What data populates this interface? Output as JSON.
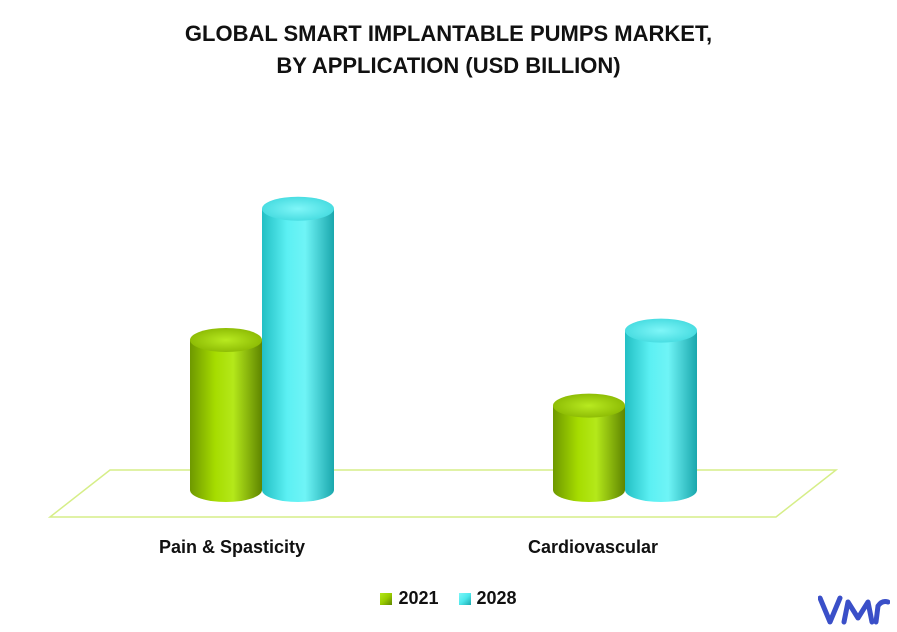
{
  "chart_data": {
    "type": "bar",
    "title_lines": [
      "GLOBAL SMART IMPLANTABLE PUMPS MARKET,",
      "BY APPLICATION (USD BILLION)"
    ],
    "categories": [
      "Pain & Spasticity",
      "Cardiovascular"
    ],
    "series": [
      {
        "name": "2021",
        "values": [
          1.6,
          0.9
        ],
        "color": "#99cc00"
      },
      {
        "name": "2028",
        "values": [
          3.0,
          1.7
        ],
        "color": "#4de8ec"
      }
    ],
    "ylim": [
      0,
      3.2
    ],
    "legend_position": "bottom",
    "grid": false
  },
  "brand": {
    "logo_icon": "vmr-logo-icon",
    "color": "#3a4fc8"
  }
}
